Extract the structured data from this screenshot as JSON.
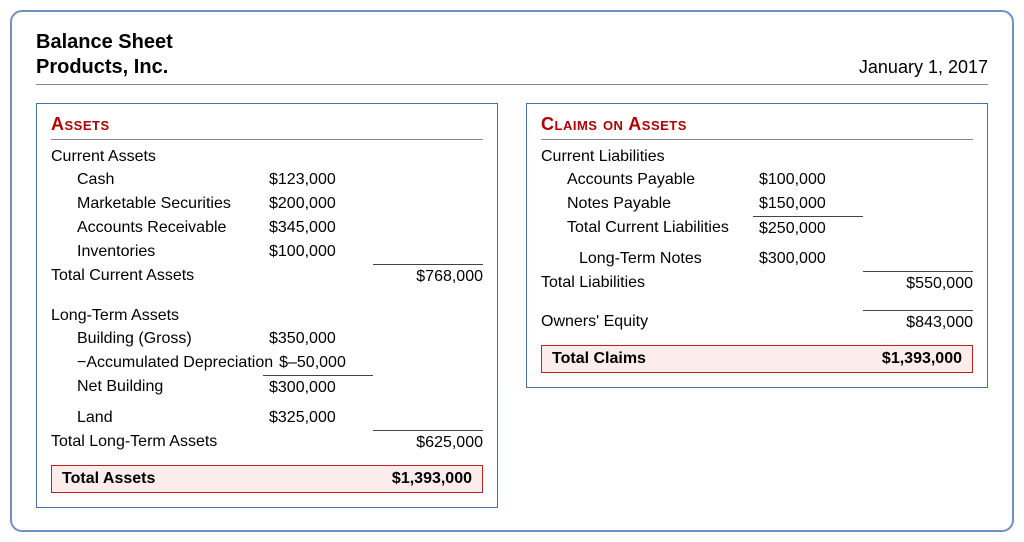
{
  "header": {
    "title_line1": "Balance Sheet",
    "title_line2": "Products, Inc.",
    "date": "January 1, 2017"
  },
  "assets": {
    "title": "Assets",
    "current_head": "Current Assets",
    "cash_label": "Cash",
    "cash_val": "$123,000",
    "mktsec_label": "Marketable Securities",
    "mktsec_val": "$200,000",
    "ar_label": "Accounts Receivable",
    "ar_val": "$345,000",
    "inv_label": "Inventories",
    "inv_val": "$100,000",
    "total_current_label": "Total Current Assets",
    "total_current_val": "$768,000",
    "lt_head": "Long-Term Assets",
    "bldg_label": "Building (Gross)",
    "bldg_val": "$350,000",
    "accdep_label": "−Accumulated Depreciation",
    "accdep_val": "$–50,000",
    "netbldg_label": "Net Building",
    "netbldg_val": "$300,000",
    "land_label": "Land",
    "land_val": "$325,000",
    "total_lt_label": "Total Long-Term Assets",
    "total_lt_val": "$625,000",
    "total_label": "Total Assets",
    "total_val": "$1,393,000"
  },
  "claims": {
    "title": "Claims on Assets",
    "cl_head": "Current Liabilities",
    "ap_label": "Accounts Payable",
    "ap_val": "$100,000",
    "np_label": "Notes Payable",
    "np_val": "$150,000",
    "tcl_label": "Total Current Liabilities",
    "tcl_val": "$250,000",
    "ltn_label": "Long-Term Notes",
    "ltn_val": "$300,000",
    "tl_label": "Total Liabilities",
    "tl_val": "$550,000",
    "oe_label": "Owners' Equity",
    "oe_val": "$843,000",
    "total_label": "Total Claims",
    "total_val": "$1,393,000"
  },
  "colors": {
    "outer_border": "#7090c0",
    "panel_border": "#4a6fa5",
    "heading_red": "#b00000",
    "total_border": "#c02020",
    "total_bg": "#fdecec",
    "rule": "#444444"
  }
}
